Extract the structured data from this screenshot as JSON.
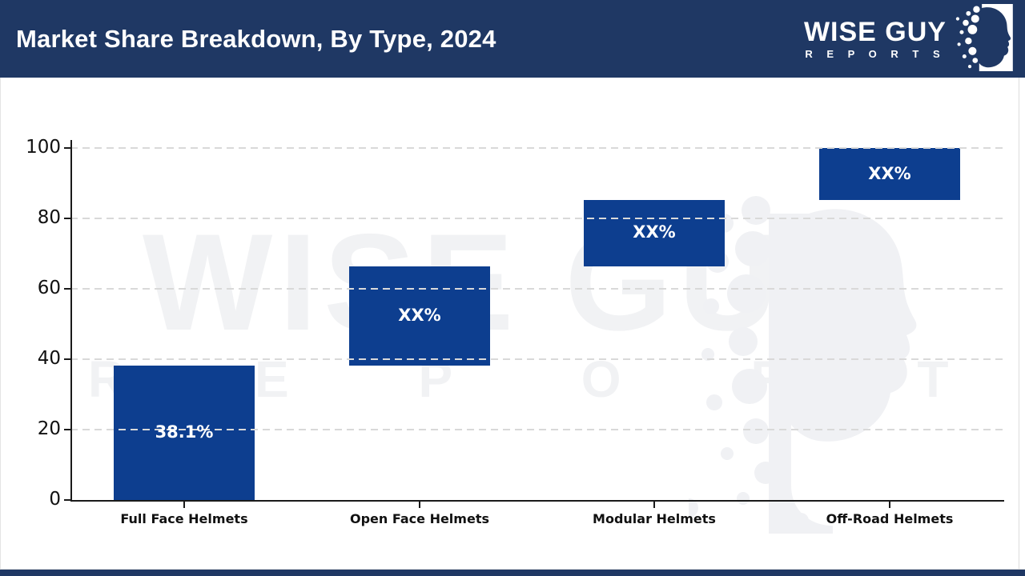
{
  "header": {
    "title": "Market Share Breakdown, By Type, 2024",
    "bg_color": "#1f3864",
    "logo": {
      "line1": "WISE GUY",
      "line2": "R E P O R T S"
    }
  },
  "watermark": {
    "line1": "WISE GUY",
    "line2": "R E P O R T S"
  },
  "chart_data": {
    "type": "bar",
    "subtype": "floating-waterfall",
    "title": "Market Share Breakdown, By Type, 2024",
    "categories": [
      "Full Face Helmets",
      "Open Face Helmets",
      "Modular Helmets",
      "Off-Road Helmets"
    ],
    "segments": [
      {
        "category": "Full Face Helmets",
        "start": 0,
        "end": 38.1,
        "label": "38.1%"
      },
      {
        "category": "Open Face Helmets",
        "start": 38.1,
        "end": 66.4,
        "label": "XX%"
      },
      {
        "category": "Modular Helmets",
        "start": 66.4,
        "end": 85.2,
        "label": "XX%"
      },
      {
        "category": "Off-Road Helmets",
        "start": 85.2,
        "end": 100,
        "label": "XX%"
      }
    ],
    "xlabel": "",
    "ylabel": "",
    "ylim": [
      0,
      100
    ],
    "yticks": [
      0,
      20,
      40,
      60,
      80,
      100
    ],
    "grid": "horizontal-dashed",
    "legend": "none",
    "bar_color": "#0d3e8f",
    "bar_label_color": "#ffffff",
    "axis_color": "#1a1a1a",
    "gridline_color": "#d9d9d9"
  }
}
